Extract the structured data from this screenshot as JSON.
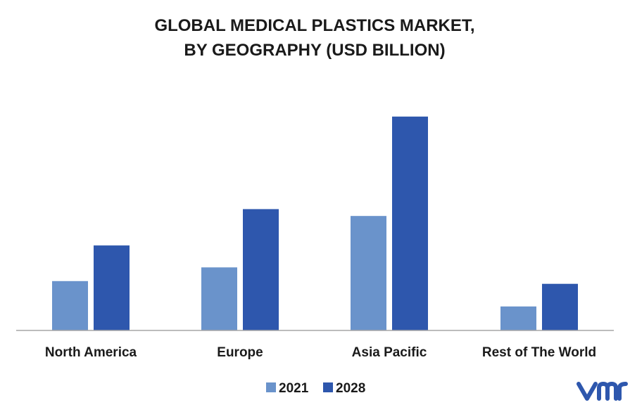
{
  "chart_data": {
    "type": "bar",
    "title": "GLOBAL MEDICAL PLASTICS MARKET,",
    "subtitle": "BY GEOGRAPHY (USD BILLION)",
    "categories": [
      "North America",
      "Europe",
      "Asia Pacific",
      "Rest of The World"
    ],
    "series": [
      {
        "name": "2021",
        "values": [
          7.2,
          9.2,
          16.7,
          3.5
        ],
        "color": "#6a93cb"
      },
      {
        "name": "2028",
        "values": [
          12.4,
          17.7,
          31.2,
          6.8
        ],
        "color": "#2e57ad"
      }
    ],
    "ylim": [
      0,
      40
    ],
    "grid": false,
    "legend": "bottom-center"
  },
  "logo": {
    "text": "vmr",
    "color": "#2e57ad"
  }
}
